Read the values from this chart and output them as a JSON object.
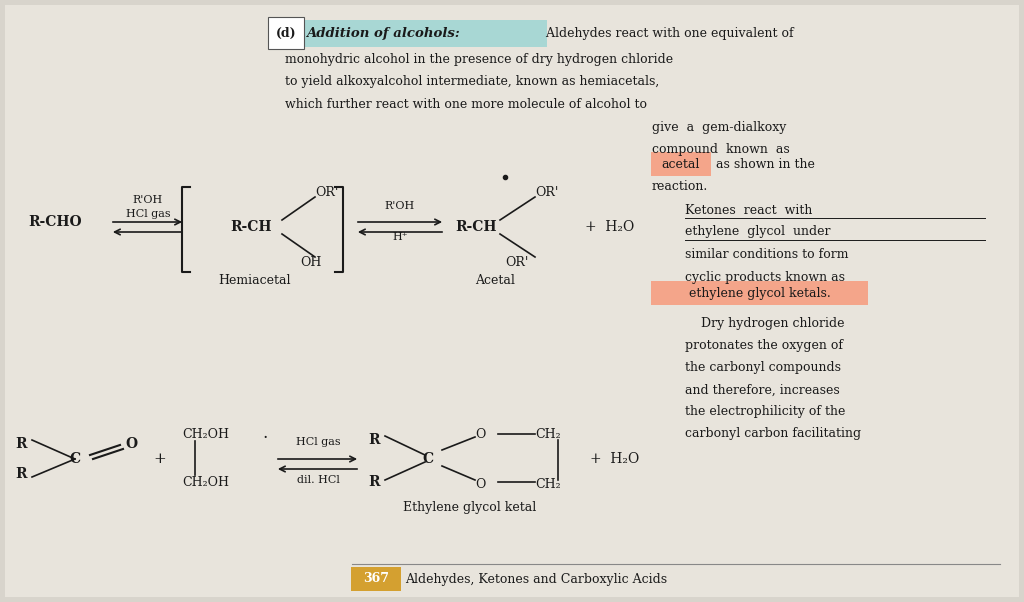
{
  "bg_color": "#d8d4cc",
  "page_bg": "#e8e4dc",
  "text_color": "#1a1a1a",
  "highlight_cyan": "#7ecfcf",
  "highlight_orange": "#f4a58a",
  "title_bold_italic": "(d) Addition of alcohols:",
  "title_rest": " Aldehydes react with one equivalent of\nmonohydric alcohol in the presence of dry hydrogen chloride\nto yield alkoxyalcohol intermediate, known as hemiacetals,\nwhich further react with one more molecule of alcohol to",
  "right_text_1": "give  a  gem-dialkoxy\ncompound  known  as",
  "right_highlight_word": "acetal",
  "right_text_2": " as shown in the\nreaction.",
  "right_text_3": "Ketones  react  with\nethylene  glycol  under\nsimilar conditions to form\ncyclic products known as",
  "right_highlight_word2": "ethylene glycol ketals.",
  "right_text_4": "    Dry hydrogen chloride\nprotonates the oxygen of\nthe carbonyl compounds\nand therefore, increases\nthe electrophilicity of the\ncarbonyl carbon facilitating",
  "footer_text": "Aldehydes, Ketones and Carboxylic Acids",
  "page_num": "367"
}
